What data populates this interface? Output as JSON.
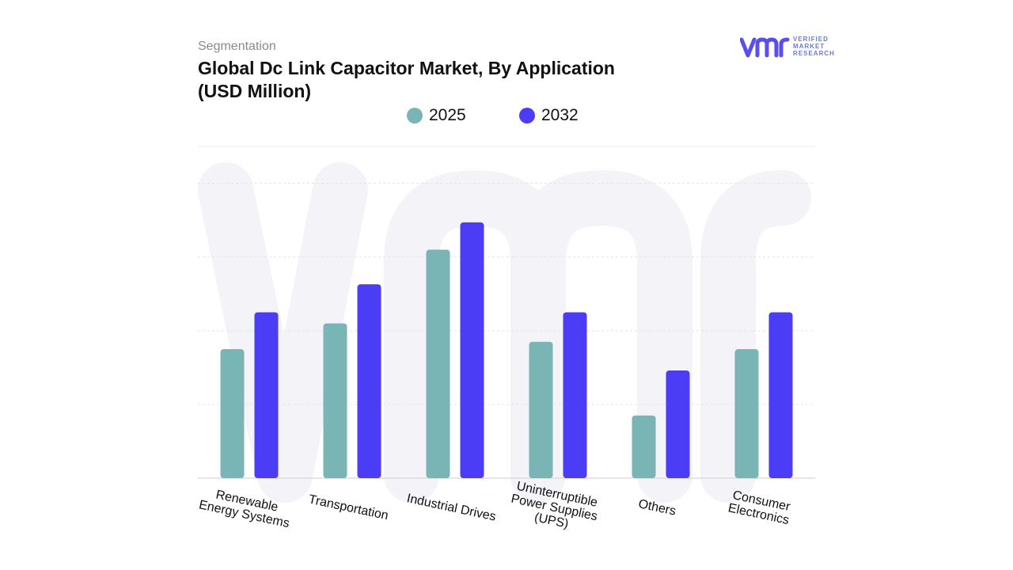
{
  "header": {
    "subtitle": "Segmentation",
    "title_line1": "Global Dc Link Capacitor Market, By Application",
    "title_line2": "(USD Million)"
  },
  "logo": {
    "icon_name": "vmr-logo-icon",
    "line1": "VERIFIED",
    "line2": "MARKET",
    "line3": "RESEARCH",
    "color": "#5b4ef0"
  },
  "chart_data": {
    "type": "bar",
    "categories": [
      "Renewable Energy Systems",
      "Transportation",
      "Industrial Drives",
      "Uninterruptible Power Supplies (UPS)",
      "Others",
      "Consumer Electronics"
    ],
    "category_lines": [
      [
        "Renewable",
        "Energy Systems"
      ],
      [
        "Transportation"
      ],
      [
        "Industrial  Drives"
      ],
      [
        "Uninterruptible",
        "Power Supplies",
        "(UPS)"
      ],
      [
        "Others"
      ],
      [
        "Consumer",
        "Electronics"
      ]
    ],
    "series": [
      {
        "name": "2025",
        "color": "#7ab5b6",
        "values": [
          1.75,
          2.1,
          3.1,
          1.85,
          0.85,
          1.75
        ]
      },
      {
        "name": "2032",
        "color": "#4b3cf5",
        "values": [
          2.25,
          2.63,
          3.47,
          2.25,
          1.46,
          2.25
        ]
      }
    ],
    "ylim": [
      0,
      4.5
    ],
    "grid": true,
    "legend_position": "top-center",
    "xlabel": "",
    "ylabel": ""
  }
}
